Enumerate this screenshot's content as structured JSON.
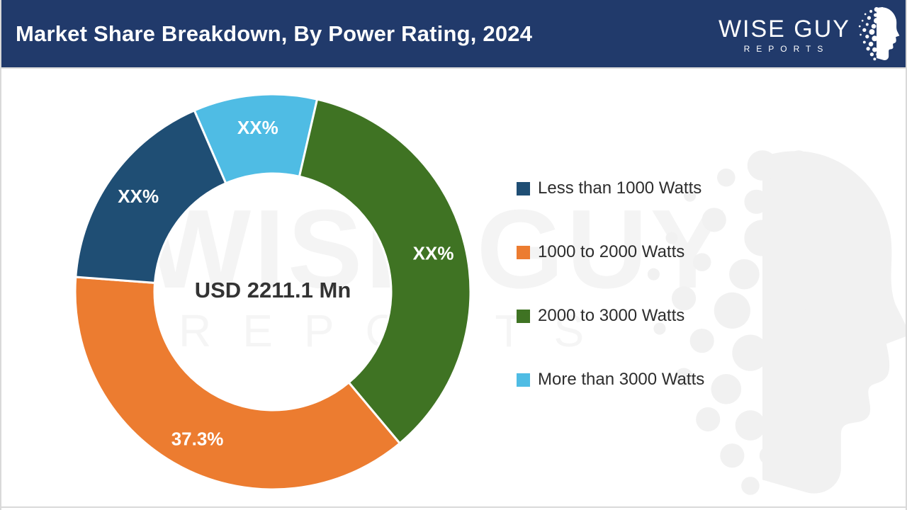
{
  "header": {
    "title": "Market Share Breakdown, By Power Rating, 2024",
    "bg_color": "#213A6B",
    "logo": {
      "name_line": "WISE GUY",
      "sub_line": "REPORTS"
    }
  },
  "watermark": {
    "name_line": "WISE GUY",
    "sub_line": "REPORTS"
  },
  "chart_data": {
    "type": "pie",
    "subtype": "donut",
    "title": "Market Share Breakdown, By Power Rating, 2024",
    "center_label": "USD 2211.1 Mn",
    "start_angle_deg": -23.4,
    "inner_radius_ratio": 0.6,
    "legend_position": "right",
    "segments": [
      {
        "label": "More than 3000 Watts",
        "color": "#4FBCE4",
        "value_pct": 10.1,
        "display_label": "XX%"
      },
      {
        "label": "2000 to 3000 Watts",
        "color": "#3F7323",
        "value_pct": 35.3,
        "display_label": "XX%"
      },
      {
        "label": "1000 to 2000 Watts",
        "color": "#EC7C30",
        "value_pct": 37.3,
        "display_label": "37.3%"
      },
      {
        "label": "Less than 1000 Watts",
        "color": "#1F4E74",
        "value_pct": 17.3,
        "display_label": "XX%"
      }
    ],
    "legend": [
      {
        "label": "Less than 1000 Watts",
        "color": "#1F4E74"
      },
      {
        "label": "1000 to 2000 Watts",
        "color": "#EC7C30"
      },
      {
        "label": "2000 to 3000 Watts",
        "color": "#3F7323"
      },
      {
        "label": "More than 3000 Watts",
        "color": "#4FBCE4"
      }
    ]
  }
}
